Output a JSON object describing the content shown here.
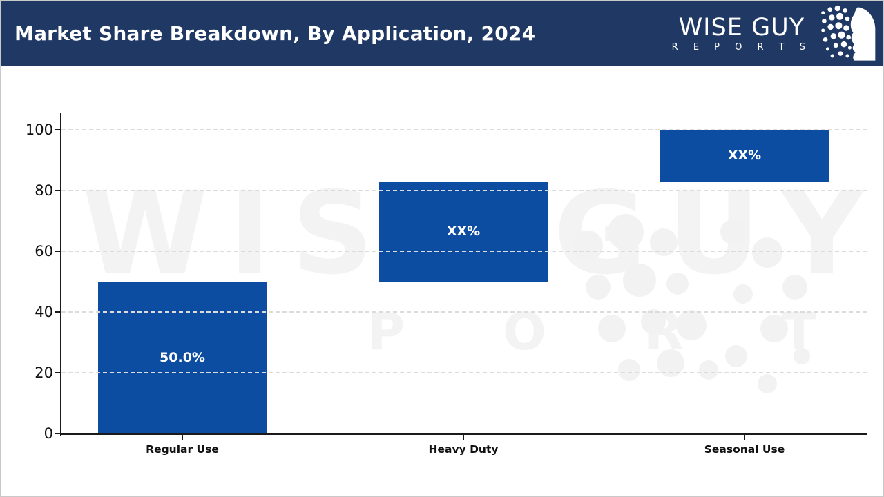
{
  "header": {
    "title": "Market Share Breakdown, By Application, 2024",
    "bg_color": "#1f3864",
    "logo": {
      "line1": "WISE GUY",
      "line2": "R E P O R T S"
    }
  },
  "watermark": {
    "line1": "WISE GUY",
    "line2": "R E P O R T S"
  },
  "chart_data": {
    "type": "bar",
    "subtype": "waterfall",
    "title": "Market Share Breakdown, By Application, 2024",
    "categories": [
      "Regular Use",
      "Heavy Duty",
      "Seasonal Use"
    ],
    "segments": [
      {
        "category": "Regular Use",
        "start": 0,
        "end": 50,
        "label": "50.0%"
      },
      {
        "category": "Heavy Duty",
        "start": 50,
        "end": 83,
        "label": "XX%"
      },
      {
        "category": "Seasonal Use",
        "start": 83,
        "end": 100,
        "label": "XX%"
      }
    ],
    "ylim": [
      0,
      100
    ],
    "yticks": [
      0,
      20,
      40,
      60,
      80,
      100
    ],
    "grid": true,
    "grid_style": "dashed",
    "bar_color": "#0d4da1",
    "label_color": "#ffffff",
    "axis_color": "#1a1a1a",
    "grid_color": "#dcdcdc"
  }
}
